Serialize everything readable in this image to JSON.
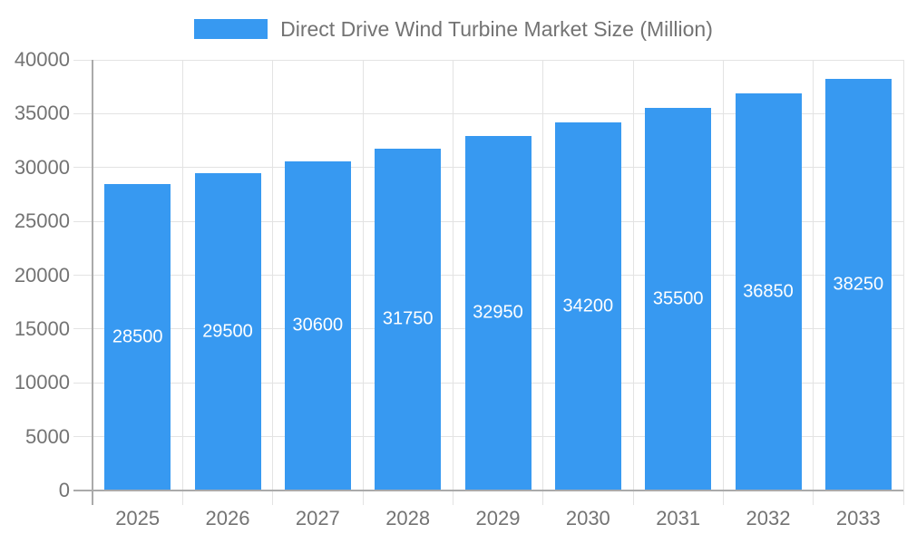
{
  "legend": {
    "items": [
      {
        "label": "Direct Drive Wind Turbine Market Size (Million)",
        "swatch_color": "#3799F1"
      }
    ]
  },
  "chart_data": {
    "type": "bar",
    "title": "Direct Drive Wind Turbine Market Size (Million)",
    "categories": [
      "2025",
      "2026",
      "2027",
      "2028",
      "2029",
      "2030",
      "2031",
      "2032",
      "2033"
    ],
    "values": [
      28500,
      29500,
      30600,
      31750,
      32950,
      34200,
      35500,
      36850,
      38250
    ],
    "bar_labels": [
      "28500",
      "29500",
      "30600",
      "31750",
      "32950",
      "34200",
      "35500",
      "36850",
      "38250"
    ],
    "xlabel": "",
    "ylabel": "",
    "ylim": [
      0,
      40000
    ],
    "yticks": [
      0,
      5000,
      10000,
      15000,
      20000,
      25000,
      30000,
      35000,
      40000
    ],
    "grid": true,
    "legend_position": "top",
    "colors": {
      "bar": "#3799F1",
      "bar_label": "#FFFFFF",
      "grid": "#E3E3E3",
      "axis": "#AAAAAA",
      "tick_label": "#737373",
      "legend_text": "#737373",
      "background": "#FFFFFF"
    }
  }
}
